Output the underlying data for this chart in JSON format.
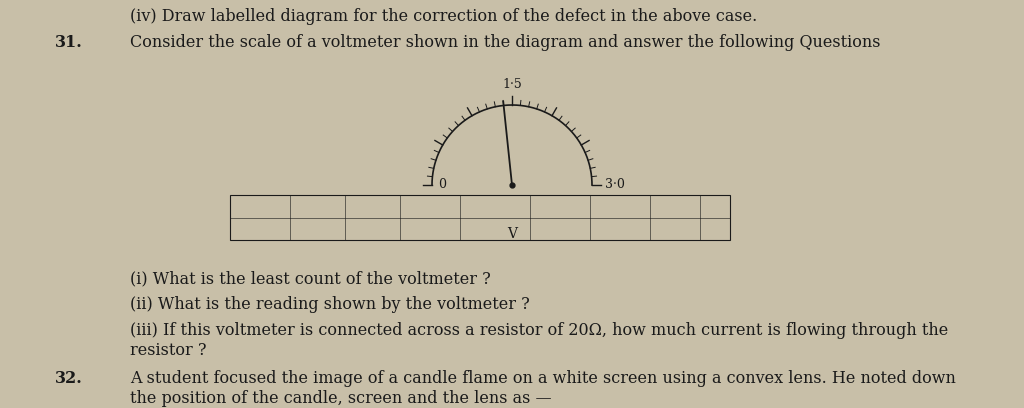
{
  "bg_color": "#c8bfa8",
  "page_color": "#ddd5c0",
  "text_color": "#1a1a1a",
  "title_line": "(iv) Draw labelled diagram for the correction of the defect in the above case.",
  "q31_num": "31.",
  "q31_text": "Consider the scale of a voltmeter shown in the diagram and answer the following Questions",
  "label_0": "0",
  "label_15": "1·5",
  "label_30": "3·0",
  "label_v": "V",
  "sub_q1": "(i) What is the least count of the voltmeter ?",
  "sub_q2": "(ii) What is the reading shown by the voltmeter ?",
  "sub_q3_line1": "(iii) If this voltmeter is connected across a resistor of 20Ω, how much current is flowing through the",
  "sub_q3_line2": "resistor ?",
  "q32_num": "32.",
  "q32_line1": "A student focused the image of a candle flame on a white screen using a convex lens. He noted down",
  "q32_line2": "the position of the candle, screen and the lens as —"
}
